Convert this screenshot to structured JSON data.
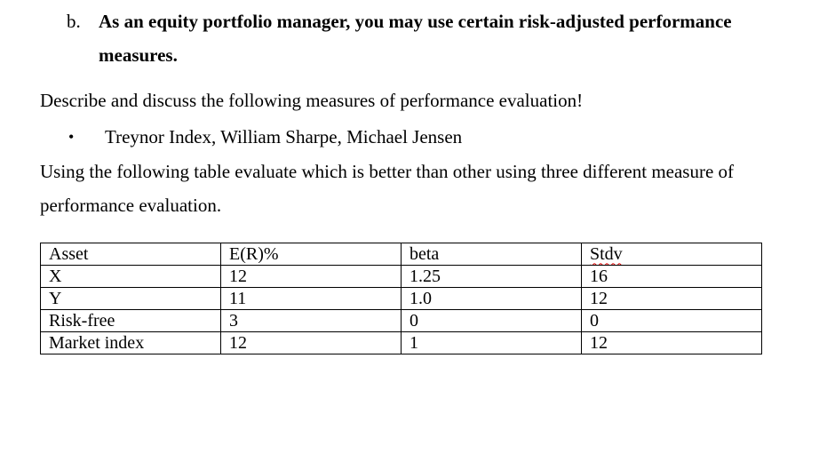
{
  "document": {
    "question": {
      "marker": "b.",
      "text": "As an equity portfolio manager, you may use certain risk-adjusted performance measures."
    },
    "describe_paragraph": "Describe and discuss the following measures of performance evaluation!",
    "bullet": {
      "glyph": "•",
      "text": "Treynor Index, William Sharpe, Michael Jensen"
    },
    "using_paragraph": "Using the following table evaluate which is better than other using three different measure of performance evaluation.",
    "table": {
      "headers": [
        "Asset",
        "E(R)%",
        "beta",
        "Stdv"
      ],
      "rows": [
        [
          "X",
          "12",
          "1.25",
          "16"
        ],
        [
          "Y",
          "11",
          "1.0",
          "12"
        ],
        [
          "Risk-free",
          "3",
          "0",
          "0"
        ],
        [
          "Market index",
          "12",
          "1",
          "12"
        ]
      ],
      "misspelled_header": "Stdv"
    },
    "colors": {
      "text": "#000000",
      "background": "#ffffff",
      "spellcheck_underline": "#e00000"
    }
  }
}
